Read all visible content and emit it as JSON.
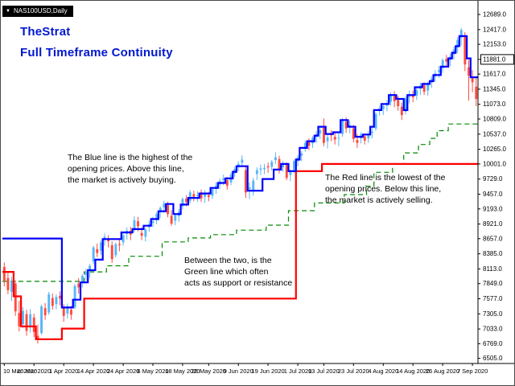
{
  "window": {
    "symbol_label": "NAS100USD,Daily",
    "dropdown_icon": "▼"
  },
  "title": {
    "line1": "TheStrat",
    "line2": "Full Timeframe Continuity",
    "color": "#0018cf"
  },
  "annotations": [
    {
      "id": "blue-note",
      "text": "The Blue line is the highest of the\nopening prices. Above this line,\nthe market is actively buying."
    },
    {
      "id": "red-note",
      "text": "The Red line is the lowest of the\nopening prices. Below this line,\nthe market is actively selling."
    },
    {
      "id": "green-note",
      "text": "Between the two, is the\nGreen line which often\nacts as support or resistance"
    }
  ],
  "chart_data": {
    "type": "candlestick",
    "symbol": "NAS100USD",
    "timeframe": "Daily",
    "colors": {
      "up": "#58b6f7",
      "down": "#ff4b40",
      "blue_line": "#0000ff",
      "red_line": "#ff0000",
      "green_line": "#008a00",
      "axis": "#000000"
    },
    "y_axis": {
      "min": 6413,
      "max": 12848,
      "ticks": [
        12689,
        12417,
        12153,
        11881,
        11617,
        11345,
        11073,
        10809,
        10537,
        10265,
        10001,
        9729,
        9457,
        9193,
        8921,
        8657,
        8385,
        8113,
        7849,
        7577,
        7305,
        7033,
        6769,
        6505
      ]
    },
    "boxed_price": 11881,
    "x_axis": {
      "ticks": [
        {
          "label": "10 Mar 2020",
          "i": 0
        },
        {
          "label": "20 Mar 2020",
          "i": 8
        },
        {
          "label": "1 Apr 2020",
          "i": 16
        },
        {
          "label": "14 Apr 2020",
          "i": 24
        },
        {
          "label": "24 Apr 2020",
          "i": 32
        },
        {
          "label": "6 May 2020",
          "i": 40
        },
        {
          "label": "18 May 2020",
          "i": 48
        },
        {
          "label": "28 May 2020",
          "i": 55
        },
        {
          "label": "9 Jun 2020",
          "i": 63
        },
        {
          "label": "19 Jun 2020",
          "i": 71
        },
        {
          "label": "1 Jul 2020",
          "i": 79
        },
        {
          "label": "13 Jul 2020",
          "i": 86
        },
        {
          "label": "23 Jul 2020",
          "i": 94
        },
        {
          "label": "4 Aug 2020",
          "i": 102
        },
        {
          "label": "14 Aug 2020",
          "i": 110
        },
        {
          "label": "26 Aug 2020",
          "i": 118
        },
        {
          "label": "7 Sep 2020",
          "i": 126
        }
      ]
    },
    "candles": [
      [
        8150,
        8230,
        7800,
        7900
      ],
      [
        7950,
        8060,
        7660,
        7730
      ],
      [
        7700,
        7970,
        7540,
        7890
      ],
      [
        7850,
        7910,
        7270,
        7350
      ],
      [
        7320,
        7540,
        6990,
        7080
      ],
      [
        7120,
        7430,
        7050,
        7360
      ],
      [
        7300,
        7380,
        6910,
        7000
      ],
      [
        7060,
        7390,
        6970,
        7300
      ],
      [
        7240,
        7310,
        6890,
        6980
      ],
      [
        6910,
        7110,
        6772,
        6850
      ],
      [
        6960,
        7470,
        6930,
        7440
      ],
      [
        7410,
        7500,
        7200,
        7280
      ],
      [
        7330,
        7700,
        7290,
        7660
      ],
      [
        7590,
        7670,
        7380,
        7450
      ],
      [
        7480,
        7660,
        7390,
        7610
      ],
      [
        7630,
        7710,
        7460,
        7580
      ],
      [
        7420,
        7480,
        7160,
        7270
      ],
      [
        7310,
        7490,
        7220,
        7440
      ],
      [
        7380,
        7450,
        7200,
        7290
      ],
      [
        7420,
        7840,
        7390,
        7810
      ],
      [
        7850,
        7950,
        7670,
        7780
      ],
      [
        7860,
        8020,
        7780,
        7990
      ],
      [
        8010,
        8120,
        7890,
        8060
      ],
      [
        8080,
        8200,
        7950,
        8170
      ],
      [
        8250,
        8530,
        8200,
        8500
      ],
      [
        8470,
        8570,
        8330,
        8400
      ],
      [
        8440,
        8630,
        8370,
        8590
      ],
      [
        8630,
        8750,
        8530,
        8690
      ],
      [
        8660,
        8720,
        8500,
        8610
      ],
      [
        8540,
        8610,
        8220,
        8290
      ],
      [
        8360,
        8590,
        8320,
        8560
      ],
      [
        8560,
        8640,
        8430,
        8540
      ],
      [
        8590,
        8760,
        8530,
        8720
      ],
      [
        8740,
        8860,
        8640,
        8800
      ],
      [
        8800,
        8870,
        8630,
        8730
      ],
      [
        8810,
        9060,
        8770,
        8990
      ],
      [
        8970,
        9050,
        8790,
        8880
      ],
      [
        8760,
        8860,
        8630,
        8710
      ],
      [
        8690,
        8860,
        8610,
        8820
      ],
      [
        8860,
        8980,
        8780,
        8920
      ],
      [
        8940,
        9050,
        8870,
        8970
      ],
      [
        8990,
        9140,
        8920,
        9100
      ],
      [
        9130,
        9240,
        9030,
        9210
      ],
      [
        9220,
        9340,
        9120,
        9290
      ],
      [
        9260,
        9320,
        9040,
        9100
      ],
      [
        9070,
        9170,
        8890,
        8930
      ],
      [
        8980,
        9120,
        8900,
        9080
      ],
      [
        9060,
        9190,
        8960,
        9140
      ],
      [
        9240,
        9400,
        9180,
        9370
      ],
      [
        9380,
        9440,
        9240,
        9310
      ],
      [
        9340,
        9530,
        9290,
        9490
      ],
      [
        9460,
        9520,
        9330,
        9410
      ],
      [
        9430,
        9510,
        9320,
        9440
      ],
      [
        9490,
        9540,
        9320,
        9380
      ],
      [
        9410,
        9530,
        9300,
        9460
      ],
      [
        9440,
        9500,
        9330,
        9410
      ],
      [
        9430,
        9590,
        9370,
        9550
      ],
      [
        9550,
        9670,
        9460,
        9610
      ],
      [
        9630,
        9740,
        9550,
        9690
      ],
      [
        9710,
        9810,
        9620,
        9740
      ],
      [
        9710,
        9770,
        9540,
        9610
      ],
      [
        9670,
        9850,
        9620,
        9810
      ],
      [
        9830,
        9950,
        9770,
        9910
      ],
      [
        9940,
        10050,
        9870,
        10000
      ],
      [
        10020,
        10155,
        9950,
        10080
      ],
      [
        9890,
        9970,
        9390,
        9490
      ],
      [
        9550,
        9670,
        9370,
        9580
      ],
      [
        9510,
        9750,
        9430,
        9700
      ],
      [
        9820,
        9940,
        9710,
        9890
      ],
      [
        9900,
        9990,
        9800,
        9920
      ],
      [
        9910,
        10000,
        9820,
        9930
      ],
      [
        9960,
        10030,
        9840,
        9940
      ],
      [
        9950,
        10070,
        9880,
        10040
      ],
      [
        10070,
        10210,
        10000,
        10120
      ],
      [
        10090,
        10150,
        9830,
        9900
      ],
      [
        9940,
        10060,
        9860,
        10010
      ],
      [
        9980,
        10030,
        9710,
        9750
      ],
      [
        9800,
        9900,
        9690,
        9860
      ],
      [
        9890,
        10080,
        9840,
        10050
      ],
      [
        10050,
        10160,
        9960,
        10120
      ],
      [
        10150,
        10230,
        10050,
        10190
      ],
      [
        10270,
        10420,
        10220,
        10380
      ],
      [
        10390,
        10460,
        10250,
        10330
      ],
      [
        10370,
        10500,
        10290,
        10470
      ],
      [
        10480,
        10590,
        10380,
        10540
      ],
      [
        10550,
        10650,
        10450,
        10610
      ],
      [
        10650,
        10820,
        10320,
        10380
      ],
      [
        10410,
        10520,
        10280,
        10480
      ],
      [
        10530,
        10610,
        10410,
        10520
      ],
      [
        10490,
        10560,
        10350,
        10440
      ],
      [
        10460,
        10550,
        10320,
        10470
      ],
      [
        10540,
        10830,
        10490,
        10790
      ],
      [
        10760,
        10840,
        10560,
        10640
      ],
      [
        10670,
        10780,
        10550,
        10700
      ],
      [
        10640,
        10700,
        10390,
        10450
      ],
      [
        10430,
        10540,
        10290,
        10380
      ],
      [
        10460,
        10570,
        10370,
        10530
      ],
      [
        10500,
        10550,
        10350,
        10420
      ],
      [
        10460,
        10590,
        10380,
        10540
      ],
      [
        10560,
        10670,
        10460,
        10580
      ],
      [
        10640,
        10930,
        10600,
        10900
      ],
      [
        10950,
        11050,
        10870,
        11000
      ],
      [
        10990,
        11090,
        10880,
        11040
      ],
      [
        11050,
        11150,
        10950,
        11100
      ],
      [
        11120,
        11290,
        11050,
        11250
      ],
      [
        11220,
        11310,
        11020,
        11130
      ],
      [
        11150,
        11230,
        10960,
        11040
      ],
      [
        11030,
        11100,
        10790,
        10880
      ],
      [
        10940,
        11220,
        10890,
        11180
      ],
      [
        11200,
        11320,
        11090,
        11220
      ],
      [
        11250,
        11320,
        11110,
        11200
      ],
      [
        11230,
        11370,
        11150,
        11330
      ],
      [
        11350,
        11460,
        11240,
        11410
      ],
      [
        11420,
        11470,
        11240,
        11300
      ],
      [
        11320,
        11480,
        11230,
        11430
      ],
      [
        11460,
        11580,
        11370,
        11530
      ],
      [
        11570,
        11690,
        11480,
        11630
      ],
      [
        11650,
        11760,
        11550,
        11690
      ],
      [
        11720,
        11900,
        11640,
        11870
      ],
      [
        11890,
        11960,
        11750,
        11840
      ],
      [
        11870,
        11980,
        11760,
        11930
      ],
      [
        11970,
        12110,
        11880,
        12060
      ],
      [
        12090,
        12280,
        12000,
        12230
      ],
      [
        12270,
        12450,
        12130,
        12410
      ],
      [
        12290,
        12370,
        11670,
        11790
      ],
      [
        11740,
        11870,
        11140,
        11590
      ],
      [
        11540,
        11690,
        11290,
        11470
      ],
      [
        11390,
        11550,
        11040,
        11170
      ]
    ],
    "lines": {
      "blue_highest_open": {
        "color": "#0000ff",
        "points": [
          [
            0,
            8660
          ],
          [
            16,
            7420
          ],
          [
            19,
            7560
          ],
          [
            21,
            7870
          ],
          [
            23,
            8090
          ],
          [
            25,
            8280
          ],
          [
            27,
            8650
          ],
          [
            32,
            8770
          ],
          [
            35,
            8830
          ],
          [
            38,
            8890
          ],
          [
            40,
            9010
          ],
          [
            42,
            9150
          ],
          [
            44,
            9280
          ],
          [
            46,
            9100
          ],
          [
            48,
            9270
          ],
          [
            50,
            9390
          ],
          [
            53,
            9470
          ],
          [
            56,
            9570
          ],
          [
            58,
            9660
          ],
          [
            60,
            9740
          ],
          [
            62,
            9860
          ],
          [
            63,
            9960
          ],
          [
            66,
            9520
          ],
          [
            70,
            9730
          ],
          [
            73,
            9900
          ],
          [
            75,
            10000
          ],
          [
            77,
            9870
          ],
          [
            79,
            10080
          ],
          [
            80,
            10290
          ],
          [
            82,
            10410
          ],
          [
            84,
            10510
          ],
          [
            85,
            10670
          ],
          [
            87,
            10540
          ],
          [
            89,
            10570
          ],
          [
            91,
            10790
          ],
          [
            93,
            10670
          ],
          [
            95,
            10490
          ],
          [
            97,
            10530
          ],
          [
            99,
            10670
          ],
          [
            100,
            10970
          ],
          [
            102,
            11080
          ],
          [
            104,
            11240
          ],
          [
            106,
            11170
          ],
          [
            108,
            10970
          ],
          [
            109,
            11240
          ],
          [
            111,
            11380
          ],
          [
            113,
            11440
          ],
          [
            115,
            11490
          ],
          [
            116,
            11600
          ],
          [
            118,
            11750
          ],
          [
            120,
            11900
          ],
          [
            121,
            12000
          ],
          [
            122,
            12120
          ],
          [
            123,
            12300
          ],
          [
            125,
            11900
          ],
          [
            126,
            11560
          ]
        ]
      },
      "red_lowest_open": {
        "color": "#ff0000",
        "points": [
          [
            0,
            8060
          ],
          [
            3,
            7620
          ],
          [
            5,
            7080
          ],
          [
            9,
            6850
          ],
          [
            16,
            7040
          ],
          [
            22,
            7580
          ],
          [
            79,
            9870
          ],
          [
            86,
            10001
          ]
        ]
      },
      "green_mid": {
        "color": "#008a00",
        "dashed": true,
        "points": [
          [
            0,
            7890
          ],
          [
            22,
            8060
          ],
          [
            28,
            8170
          ],
          [
            34,
            8340
          ],
          [
            43,
            8600
          ],
          [
            50,
            8670
          ],
          [
            56,
            8730
          ],
          [
            63,
            8810
          ],
          [
            71,
            8900
          ],
          [
            77,
            9160
          ],
          [
            84,
            9300
          ],
          [
            92,
            9450
          ],
          [
            98,
            9600
          ],
          [
            100,
            9850
          ],
          [
            105,
            10000
          ],
          [
            108,
            10200
          ],
          [
            112,
            10350
          ],
          [
            115,
            10460
          ],
          [
            117,
            10600
          ],
          [
            120,
            10720
          ]
        ]
      }
    }
  }
}
